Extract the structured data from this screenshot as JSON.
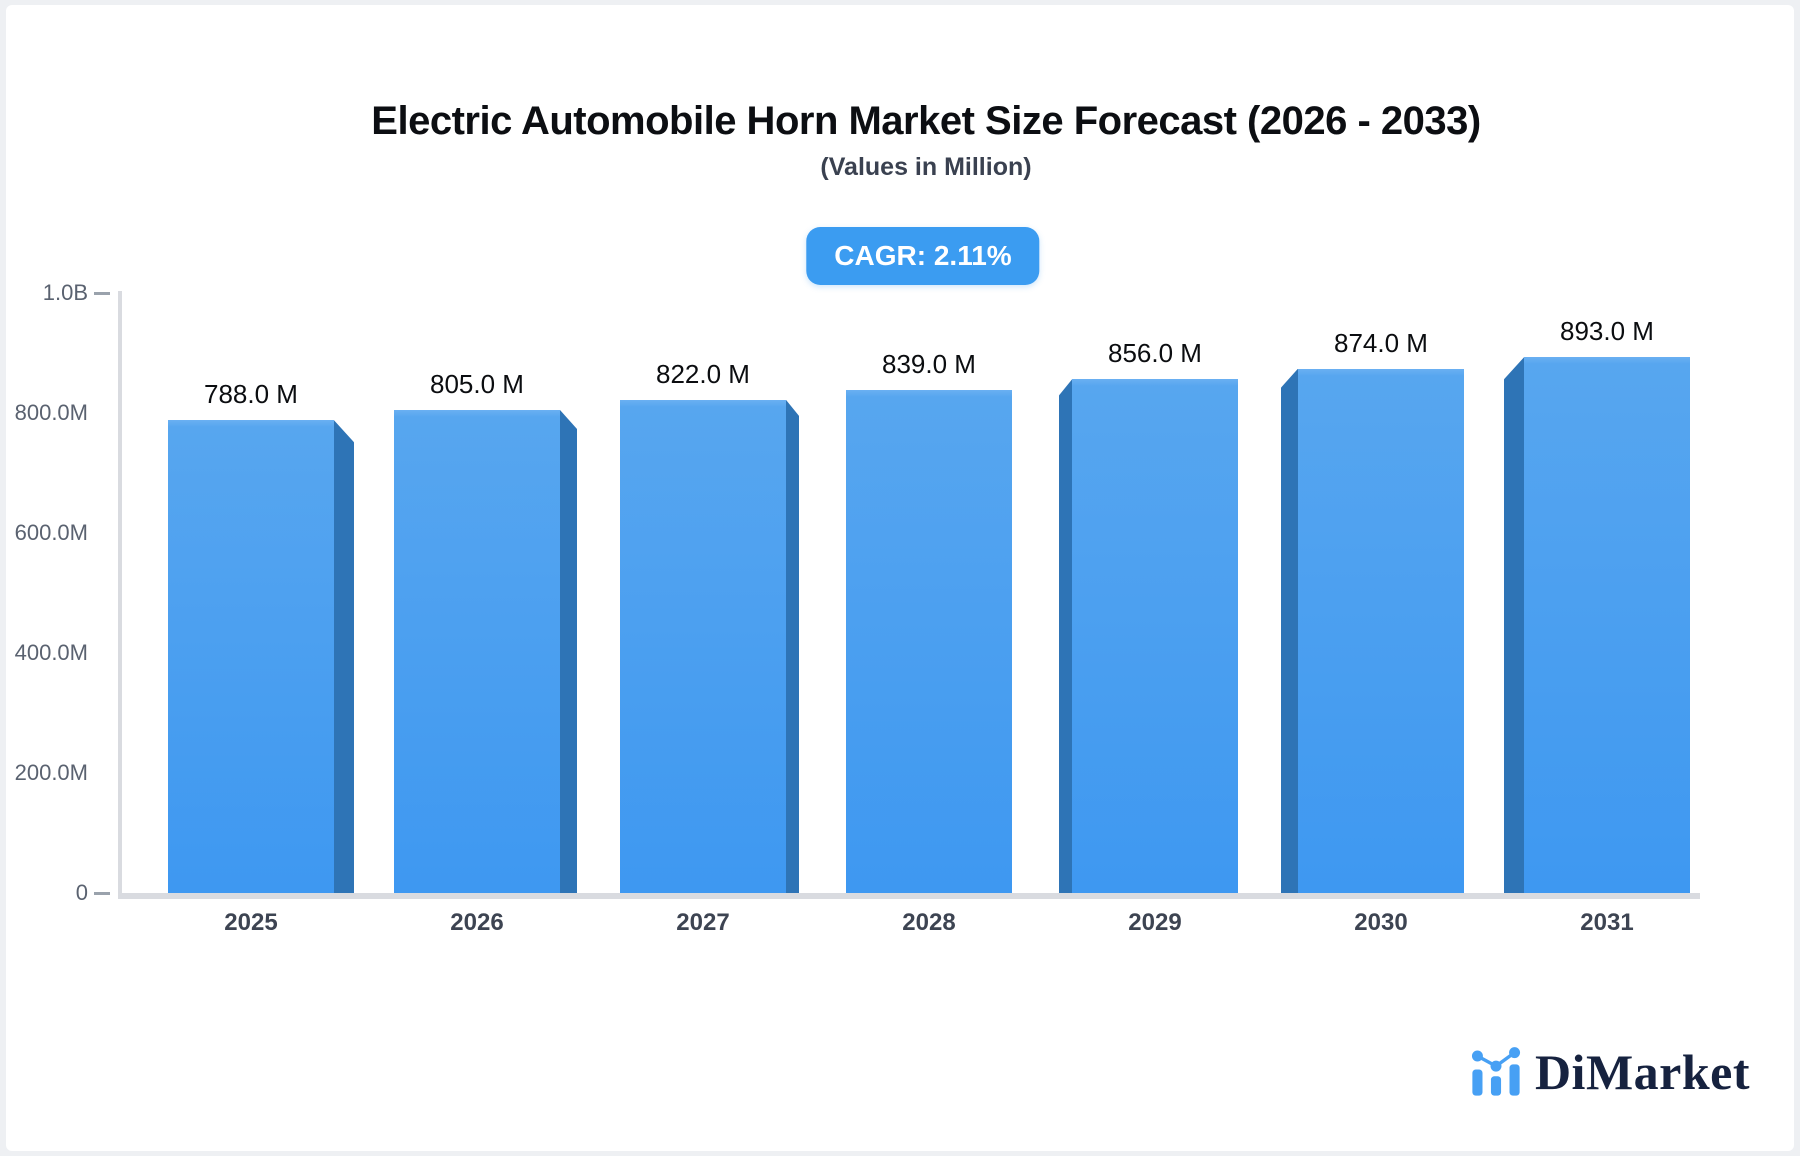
{
  "page": {
    "title": "Electric Automobile Horn Market Size Forecast (2026 - 2033)",
    "subtitle": "(Values in Million)",
    "cagr_badge": "CAGR: 2.11%"
  },
  "chart_data": {
    "type": "bar",
    "title": "Electric Automobile Horn Market Size Forecast (2026 - 2033)",
    "subtitle": "(Values in Million)",
    "categories": [
      "2025",
      "2026",
      "2027",
      "2028",
      "2029",
      "2030",
      "2031"
    ],
    "values": [
      788,
      805,
      822,
      839,
      856,
      874,
      893
    ],
    "value_labels": [
      "788.0 M",
      "805.0 M",
      "822.0 M",
      "839.0 M",
      "856.0 M",
      "874.0 M",
      "893.0 M"
    ],
    "unit": "Million",
    "cagr": "2.11%",
    "xlabel": "",
    "ylabel": "",
    "ylim": [
      0,
      1000
    ],
    "yticks": [
      {
        "value": 0,
        "label": "0",
        "dash": true
      },
      {
        "value": 200,
        "label": "200.0M",
        "dash": false
      },
      {
        "value": 400,
        "label": "400.0M",
        "dash": false
      },
      {
        "value": 600,
        "label": "600.0M",
        "dash": false
      },
      {
        "value": 800,
        "label": "800.0M",
        "dash": false
      },
      {
        "value": 1000,
        "label": "1.0B",
        "dash": true
      }
    ],
    "grid": false,
    "legend": null,
    "colors": {
      "bar_face_highlight": "#6ab0f2",
      "bar_face_top": "#57a6ef",
      "bar_face_bottom": "#3e98f1",
      "bar_side": "#2e74b6",
      "axis": "#d9dbe0",
      "badge_bg": "#3b9cf1"
    }
  },
  "logo": {
    "text": "DiMarket",
    "icon": "bar-chart-logo-icon",
    "text_color": "#16223f",
    "accent_color": "#47a0f4"
  }
}
